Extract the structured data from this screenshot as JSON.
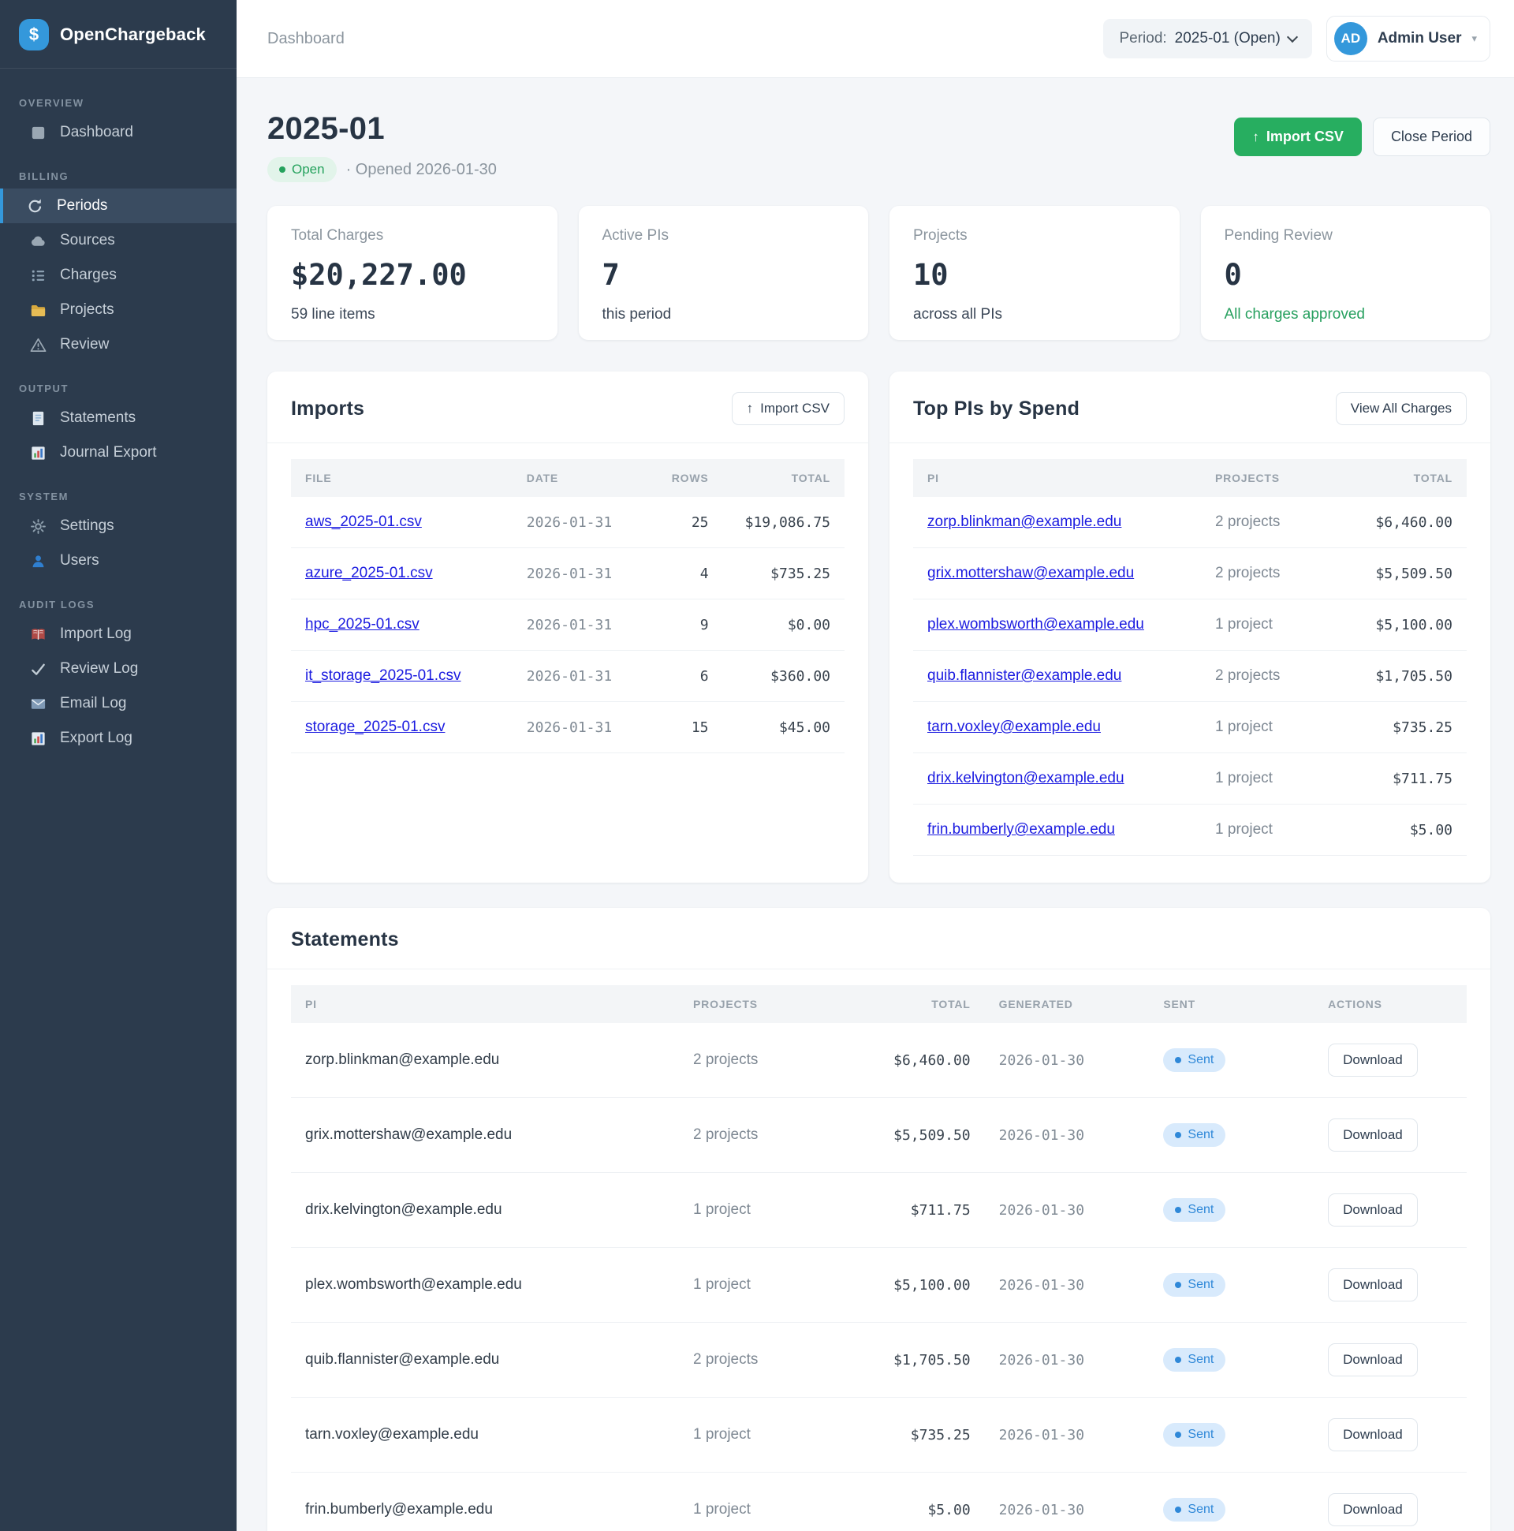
{
  "app": {
    "name": "OpenChargeback",
    "logo_glyph": "$"
  },
  "sidebar": {
    "sections": [
      {
        "label": "Overview",
        "items": [
          {
            "icon": "square",
            "label": "Dashboard"
          }
        ]
      },
      {
        "label": "Billing",
        "items": [
          {
            "icon": "refresh",
            "label": "Periods",
            "active": true
          },
          {
            "icon": "cloud",
            "label": "Sources"
          },
          {
            "icon": "list",
            "label": "Charges"
          },
          {
            "icon": "folder",
            "label": "Projects"
          },
          {
            "icon": "warn",
            "label": "Review"
          }
        ]
      },
      {
        "label": "Output",
        "items": [
          {
            "icon": "doc",
            "label": "Statements"
          },
          {
            "icon": "chart",
            "label": "Journal Export"
          }
        ]
      },
      {
        "label": "System",
        "items": [
          {
            "icon": "gear",
            "label": "Settings"
          },
          {
            "icon": "user",
            "label": "Users"
          }
        ]
      },
      {
        "label": "Audit Logs",
        "items": [
          {
            "icon": "book",
            "label": "Import Log"
          },
          {
            "icon": "check",
            "label": "Review Log"
          },
          {
            "icon": "mail",
            "label": "Email Log"
          },
          {
            "icon": "chart",
            "label": "Export Log"
          }
        ]
      }
    ]
  },
  "topbar": {
    "breadcrumb": "Dashboard",
    "period_label": "Period:",
    "period_value": "2025-01 (Open)",
    "user_initials": "AD",
    "user_name": "Admin User",
    "user_caret": "▾"
  },
  "header": {
    "title": "2025-01",
    "status": "Open",
    "opened_text": "· Opened 2026-01-30",
    "import_icon": "↑",
    "import_label": "Import CSV",
    "close_label": "Close Period"
  },
  "stats": [
    {
      "label": "Total Charges",
      "value": "$20,227.00",
      "caption": "59 line items"
    },
    {
      "label": "Active PIs",
      "value": "7",
      "caption": "this period"
    },
    {
      "label": "Projects",
      "value": "10",
      "caption": "across all PIs"
    },
    {
      "label": "Pending Review",
      "value": "0",
      "caption": "All charges approved",
      "highlight": true
    }
  ],
  "imports": {
    "title": "Imports",
    "button_icon": "↑",
    "button_label": "Import CSV",
    "columns": [
      "FILE",
      "DATE",
      "ROWS",
      "TOTAL"
    ],
    "rows": [
      {
        "file": "aws_2025-01.csv",
        "date": "2026-01-31",
        "rows": "25",
        "total": "$19,086.75"
      },
      {
        "file": "azure_2025-01.csv",
        "date": "2026-01-31",
        "rows": "4",
        "total": "$735.25"
      },
      {
        "file": "hpc_2025-01.csv",
        "date": "2026-01-31",
        "rows": "9",
        "total": "$0.00"
      },
      {
        "file": "it_storage_2025-01.csv",
        "date": "2026-01-31",
        "rows": "6",
        "total": "$360.00"
      },
      {
        "file": "storage_2025-01.csv",
        "date": "2026-01-31",
        "rows": "15",
        "total": "$45.00"
      }
    ]
  },
  "top_pis": {
    "title": "Top PIs by Spend",
    "button_label": "View All Charges",
    "columns": [
      "PI",
      "PROJECTS",
      "TOTAL"
    ],
    "rows": [
      {
        "pi": "zorp.blinkman@example.edu",
        "projects": "2 projects",
        "total": "$6,460.00"
      },
      {
        "pi": "grix.mottershaw@example.edu",
        "projects": "2 projects",
        "total": "$5,509.50"
      },
      {
        "pi": "plex.wombsworth@example.edu",
        "projects": "1 project",
        "total": "$5,100.00"
      },
      {
        "pi": "quib.flannister@example.edu",
        "projects": "2 projects",
        "total": "$1,705.50"
      },
      {
        "pi": "tarn.voxley@example.edu",
        "projects": "1 project",
        "total": "$735.25"
      },
      {
        "pi": "drix.kelvington@example.edu",
        "projects": "1 project",
        "total": "$711.75"
      },
      {
        "pi": "frin.bumberly@example.edu",
        "projects": "1 project",
        "total": "$5.00"
      }
    ]
  },
  "statements": {
    "title": "Statements",
    "columns": [
      "PI",
      "PROJECTS",
      "TOTAL",
      "GENERATED",
      "SENT",
      "ACTIONS"
    ],
    "rows": [
      {
        "pi": "zorp.blinkman@example.edu",
        "projects": "2 projects",
        "total": "$6,460.00",
        "generated": "2026-01-30",
        "sent": "Sent",
        "action": "Download"
      },
      {
        "pi": "grix.mottershaw@example.edu",
        "projects": "2 projects",
        "total": "$5,509.50",
        "generated": "2026-01-30",
        "sent": "Sent",
        "action": "Download"
      },
      {
        "pi": "drix.kelvington@example.edu",
        "projects": "1 project",
        "total": "$711.75",
        "generated": "2026-01-30",
        "sent": "Sent",
        "action": "Download"
      },
      {
        "pi": "plex.wombsworth@example.edu",
        "projects": "1 project",
        "total": "$5,100.00",
        "generated": "2026-01-30",
        "sent": "Sent",
        "action": "Download"
      },
      {
        "pi": "quib.flannister@example.edu",
        "projects": "2 projects",
        "total": "$1,705.50",
        "generated": "2026-01-30",
        "sent": "Sent",
        "action": "Download"
      },
      {
        "pi": "tarn.voxley@example.edu",
        "projects": "1 project",
        "total": "$735.25",
        "generated": "2026-01-30",
        "sent": "Sent",
        "action": "Download"
      },
      {
        "pi": "frin.bumberly@example.edu",
        "projects": "1 project",
        "total": "$5.00",
        "generated": "2026-01-30",
        "sent": "Sent",
        "action": "Download"
      }
    ]
  }
}
